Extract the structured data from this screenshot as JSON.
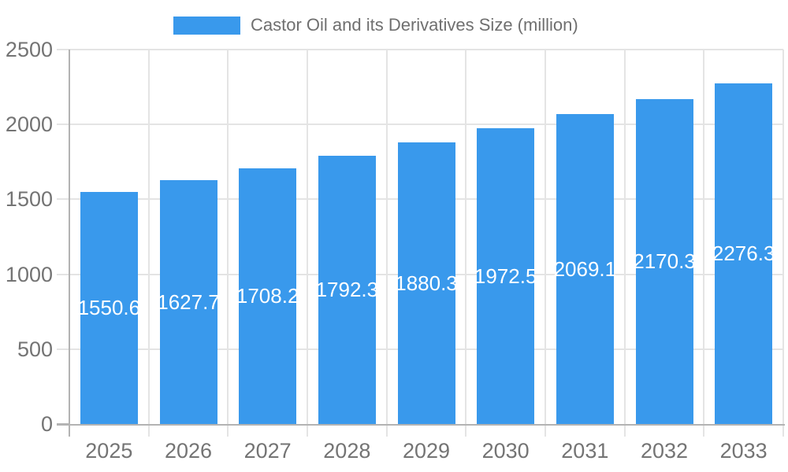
{
  "chart_data": {
    "type": "bar",
    "title": "Castor Oil and its Derivatives Size (million)",
    "legend": {
      "label": "Castor Oil and its Derivatives Size (million)",
      "position": "top-center"
    },
    "categories": [
      "2025",
      "2026",
      "2027",
      "2028",
      "2029",
      "2030",
      "2031",
      "2032",
      "2033"
    ],
    "series": [
      {
        "name": "Castor Oil and its Derivatives Size (million)",
        "values": [
          1550.6,
          1627.7,
          1708.2,
          1792.3,
          1880.3,
          1972.5,
          2069.1,
          2170.3,
          2276.3
        ]
      }
    ],
    "value_labels": [
      "1550.6",
      "1627.7",
      "1708.2",
      "1792.3",
      "1880.3",
      "1972.5",
      "2069.1",
      "2170.3",
      "2276.3"
    ],
    "xlabel": "",
    "ylabel": "",
    "ylim": [
      0,
      2500
    ],
    "yticks": [
      0,
      500,
      1000,
      1500,
      2000,
      2500
    ],
    "grid": true,
    "colors": {
      "bar": "#3999EC",
      "value_label": "#FFFFFF",
      "axis_label": "#747474",
      "gridline": "#E4E4E4",
      "axis_line": "#B3B3B3",
      "background": "#FFFFFF"
    }
  }
}
